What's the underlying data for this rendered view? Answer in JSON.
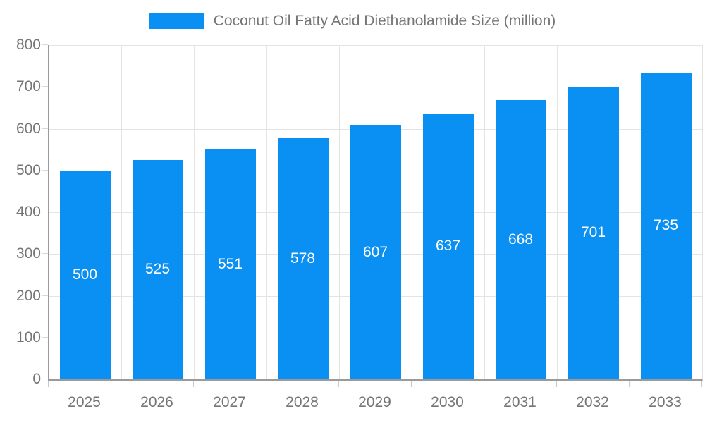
{
  "legend": {
    "label": "Coconut Oil Fatty Acid Diethanolamide Size (million)"
  },
  "colors": {
    "bar": "#0a8ff2",
    "bar_value_text": "#ffffff",
    "axis_text": "#757575"
  },
  "chart_data": {
    "type": "bar",
    "title": "Coconut Oil Fatty Acid Diethanolamide Size (million)",
    "categories": [
      "2025",
      "2026",
      "2027",
      "2028",
      "2029",
      "2030",
      "2031",
      "2032",
      "2033"
    ],
    "values": [
      500,
      525,
      551,
      578,
      607,
      637,
      668,
      701,
      735
    ],
    "series": [
      {
        "name": "Coconut Oil Fatty Acid Diethanolamide Size (million)",
        "values": [
          500,
          525,
          551,
          578,
          607,
          637,
          668,
          701,
          735
        ]
      }
    ],
    "xlabel": "",
    "ylabel": "",
    "ylim": [
      0,
      800
    ],
    "ytick_step": 100,
    "yticks": [
      0,
      100,
      200,
      300,
      400,
      500,
      600,
      700,
      800
    ],
    "grid": true,
    "legend_position": "top-center",
    "value_labels": "inside-center"
  }
}
